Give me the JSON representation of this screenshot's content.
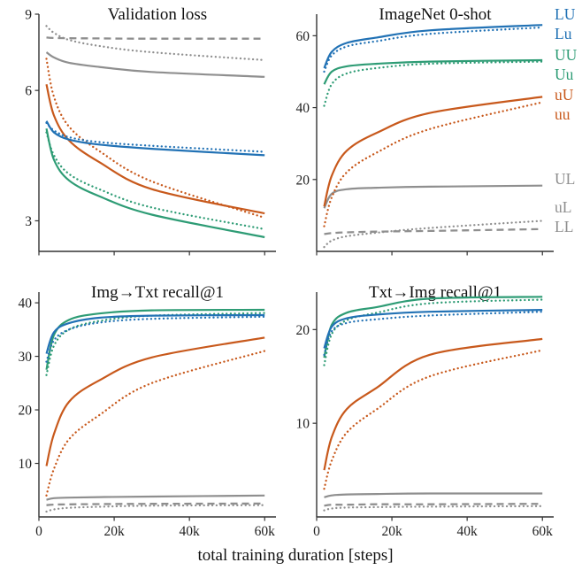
{
  "figure": {
    "xlabel": "total training duration [steps]"
  },
  "palette": {
    "blue": "#2272b5",
    "green": "#2e9c75",
    "orange": "#c8591c",
    "gray": "#8f8f8f"
  },
  "legend": {
    "items": [
      {
        "label": "LU",
        "color": "blue"
      },
      {
        "label": "Lu",
        "color": "blue"
      },
      {
        "label": "UU",
        "color": "green"
      },
      {
        "label": "Uu",
        "color": "green"
      },
      {
        "label": "uU",
        "color": "orange"
      },
      {
        "label": "uu",
        "color": "orange"
      },
      {
        "label": "UL",
        "color": "gray"
      },
      {
        "label": "uL",
        "color": "gray"
      },
      {
        "label": "LL",
        "color": "gray"
      }
    ]
  },
  "chart_data": [
    {
      "type": "line",
      "title": "Validation loss",
      "yscale": "log",
      "xlim": [
        0,
        63000
      ],
      "ylim": [
        2.55,
        9.0
      ],
      "yticks": [
        3,
        6,
        9
      ],
      "ytick_labels": [
        "3",
        "6",
        "9"
      ],
      "xticks": [
        0,
        20000,
        40000,
        60000
      ],
      "xtick_labels": [
        "0",
        "20k",
        "40k",
        "60k"
      ],
      "show_xtick_labels": false,
      "x": [
        2000,
        4000,
        8000,
        16000,
        30000,
        60000
      ],
      "series": [
        {
          "name": "LL",
          "color": "gray",
          "style": "dashed",
          "y": [
            7.95,
            7.93,
            7.92,
            7.91,
            7.9,
            7.9
          ]
        },
        {
          "name": "uL",
          "color": "gray",
          "style": "dotted",
          "y": [
            8.45,
            8.15,
            7.85,
            7.6,
            7.35,
            7.05
          ]
        },
        {
          "name": "UL",
          "color": "gray",
          "style": "solid",
          "y": [
            7.35,
            7.15,
            6.95,
            6.8,
            6.62,
            6.45
          ]
        },
        {
          "name": "uu",
          "color": "orange",
          "style": "dotted",
          "y": [
            7.1,
            5.8,
            4.95,
            4.35,
            3.7,
            3.05
          ]
        },
        {
          "name": "uU",
          "color": "orange",
          "style": "solid",
          "y": [
            6.2,
            5.25,
            4.6,
            4.1,
            3.55,
            3.12
          ]
        },
        {
          "name": "Uu",
          "color": "green",
          "style": "dotted",
          "y": [
            4.8,
            4.25,
            3.85,
            3.55,
            3.22,
            2.87
          ]
        },
        {
          "name": "UU",
          "color": "green",
          "style": "solid",
          "y": [
            4.9,
            4.15,
            3.72,
            3.42,
            3.1,
            2.75
          ]
        },
        {
          "name": "Lu",
          "color": "blue",
          "style": "dotted",
          "y": [
            5.05,
            4.85,
            4.68,
            4.56,
            4.47,
            4.33
          ]
        },
        {
          "name": "LU",
          "color": "blue",
          "style": "solid",
          "y": [
            5.1,
            4.8,
            4.62,
            4.5,
            4.4,
            4.25
          ]
        }
      ]
    },
    {
      "type": "line",
      "title": "ImageNet 0-shot",
      "yscale": "linear",
      "xlim": [
        0,
        63000
      ],
      "ylim": [
        0,
        66
      ],
      "yticks": [
        20,
        40,
        60
      ],
      "ytick_labels": [
        "20",
        "40",
        "60"
      ],
      "xticks": [
        0,
        20000,
        40000,
        60000
      ],
      "xtick_labels": [
        "0",
        "20k",
        "40k",
        "60k"
      ],
      "show_xtick_labels": false,
      "x": [
        2000,
        4000,
        8000,
        16000,
        30000,
        60000
      ],
      "series": [
        {
          "name": "LL",
          "color": "gray",
          "style": "dashed",
          "y": [
            4.8,
            5.1,
            5.3,
            5.5,
            5.7,
            6.2
          ]
        },
        {
          "name": "uL",
          "color": "gray",
          "style": "dotted",
          "y": [
            1.2,
            3.0,
            4.2,
            5.2,
            6.5,
            8.5
          ]
        },
        {
          "name": "UL",
          "color": "gray",
          "style": "solid",
          "y": [
            12,
            16,
            17.3,
            17.7,
            18,
            18.3
          ]
        },
        {
          "name": "uu",
          "color": "orange",
          "style": "dotted",
          "y": [
            7,
            15,
            22,
            27.5,
            34,
            41.5
          ]
        },
        {
          "name": "uU",
          "color": "orange",
          "style": "solid",
          "y": [
            12.5,
            21,
            28,
            33,
            38.5,
            43
          ]
        },
        {
          "name": "Uu",
          "color": "green",
          "style": "dotted",
          "y": [
            40.5,
            46.5,
            49.5,
            51,
            52.2,
            52.8
          ]
        },
        {
          "name": "UU",
          "color": "green",
          "style": "solid",
          "y": [
            46.5,
            50,
            51.5,
            52.2,
            52.8,
            53.2
          ]
        },
        {
          "name": "Lu",
          "color": "blue",
          "style": "dotted",
          "y": [
            50,
            54.5,
            57,
            58.5,
            60.5,
            62.3
          ]
        },
        {
          "name": "LU",
          "color": "blue",
          "style": "solid",
          "y": [
            51,
            55.5,
            58,
            59.5,
            61.5,
            63
          ]
        }
      ]
    },
    {
      "type": "line",
      "title": "Img→Txt recall@1",
      "yscale": "linear",
      "xlim": [
        0,
        63000
      ],
      "ylim": [
        0,
        42
      ],
      "yticks": [
        10,
        20,
        30,
        40
      ],
      "ytick_labels": [
        "10",
        "20",
        "30",
        "40"
      ],
      "xticks": [
        0,
        20000,
        40000,
        60000
      ],
      "xtick_labels": [
        "0",
        "20k",
        "40k",
        "60k"
      ],
      "show_xtick_labels": true,
      "x": [
        2000,
        4000,
        8000,
        16000,
        30000,
        60000
      ],
      "series": [
        {
          "name": "LL",
          "color": "gray",
          "style": "dashed",
          "y": [
            2.2,
            2.3,
            2.35,
            2.4,
            2.45,
            2.5
          ]
        },
        {
          "name": "uL",
          "color": "gray",
          "style": "dotted",
          "y": [
            1.0,
            1.4,
            1.7,
            1.9,
            2.1,
            2.2
          ]
        },
        {
          "name": "UL",
          "color": "gray",
          "style": "solid",
          "y": [
            3.2,
            3.5,
            3.6,
            3.7,
            3.8,
            4.0
          ]
        },
        {
          "name": "uu",
          "color": "orange",
          "style": "dotted",
          "y": [
            4,
            9,
            14.5,
            19,
            25,
            31
          ]
        },
        {
          "name": "uU",
          "color": "orange",
          "style": "solid",
          "y": [
            9.5,
            15.5,
            21.5,
            25.5,
            29.8,
            33.5
          ]
        },
        {
          "name": "Uu",
          "color": "green",
          "style": "dotted",
          "y": [
            26.5,
            32,
            35,
            36.6,
            37.6,
            38.1
          ]
        },
        {
          "name": "UU",
          "color": "green",
          "style": "solid",
          "y": [
            27.5,
            34,
            36.8,
            38,
            38.6,
            38.7
          ]
        },
        {
          "name": "Lu",
          "color": "blue",
          "style": "dotted",
          "y": [
            29,
            33,
            35,
            36.3,
            37,
            37.4
          ]
        },
        {
          "name": "LU",
          "color": "blue",
          "style": "solid",
          "y": [
            30.5,
            34.5,
            36.2,
            37.2,
            37.6,
            37.7
          ]
        }
      ]
    },
    {
      "type": "line",
      "title": "Txt→Img recall@1",
      "yscale": "linear",
      "xlim": [
        0,
        63000
      ],
      "ylim": [
        0,
        24
      ],
      "yticks": [
        10,
        20
      ],
      "ytick_labels": [
        "10",
        "20"
      ],
      "xticks": [
        0,
        20000,
        40000,
        60000
      ],
      "xtick_labels": [
        "0",
        "20k",
        "40k",
        "60k"
      ],
      "show_xtick_labels": true,
      "x": [
        2000,
        4000,
        8000,
        16000,
        30000,
        60000
      ],
      "series": [
        {
          "name": "LL",
          "color": "gray",
          "style": "dashed",
          "y": [
            1.2,
            1.3,
            1.3,
            1.35,
            1.35,
            1.4
          ]
        },
        {
          "name": "uL",
          "color": "gray",
          "style": "dotted",
          "y": [
            0.7,
            0.9,
            1.0,
            1.05,
            1.1,
            1.15
          ]
        },
        {
          "name": "UL",
          "color": "gray",
          "style": "solid",
          "y": [
            2.1,
            2.3,
            2.4,
            2.45,
            2.5,
            2.5
          ]
        },
        {
          "name": "uu",
          "color": "orange",
          "style": "dotted",
          "y": [
            3,
            6,
            9,
            11.5,
            15,
            17.8
          ]
        },
        {
          "name": "uU",
          "color": "orange",
          "style": "solid",
          "y": [
            5,
            8.5,
            11.5,
            13.8,
            17.3,
            19
          ]
        },
        {
          "name": "Uu",
          "color": "green",
          "style": "dotted",
          "y": [
            16.2,
            19.5,
            21,
            21.8,
            22.8,
            23.2
          ]
        },
        {
          "name": "UU",
          "color": "green",
          "style": "solid",
          "y": [
            17,
            20.5,
            21.8,
            22.4,
            23.3,
            23.5
          ]
        },
        {
          "name": "Lu",
          "color": "blue",
          "style": "dotted",
          "y": [
            17.3,
            19.8,
            20.7,
            21.1,
            21.5,
            21.9
          ]
        },
        {
          "name": "LU",
          "color": "blue",
          "style": "solid",
          "y": [
            18,
            20.3,
            21.2,
            21.6,
            21.9,
            22.1
          ]
        }
      ]
    }
  ]
}
